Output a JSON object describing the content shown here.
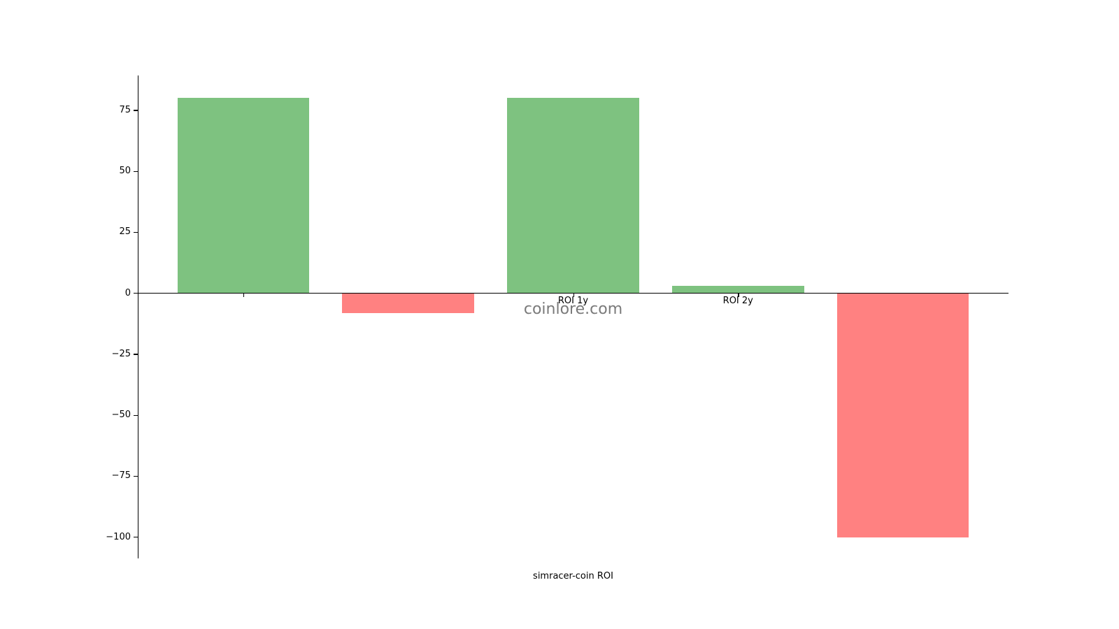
{
  "title": "simracer-coin ROI",
  "watermark": {
    "text": "coinlore.com",
    "color": "#7a7a7a"
  },
  "chart_data": {
    "type": "bar",
    "title": "simracer-coin ROI",
    "xlabel": "",
    "ylabel": "",
    "categories": [
      "",
      "",
      "ROI 1y",
      "ROI 2y",
      ""
    ],
    "values": [
      80,
      -8,
      80,
      3,
      -100
    ],
    "ylim": [
      -109,
      89
    ],
    "yticks": [
      {
        "value": 75,
        "label": "75"
      },
      {
        "value": 50,
        "label": "50"
      },
      {
        "value": 25,
        "label": "25"
      },
      {
        "value": 0,
        "label": "0"
      },
      {
        "value": -25,
        "label": "−25"
      },
      {
        "value": -50,
        "label": "−50"
      },
      {
        "value": -75,
        "label": "−75"
      },
      {
        "value": -100,
        "label": "−100"
      }
    ],
    "positive_color": "#7ec280",
    "negative_color": "#ff8181",
    "axis_color": "#000000",
    "grid": false,
    "legend_position": "none",
    "background_color": "#ffffff"
  }
}
